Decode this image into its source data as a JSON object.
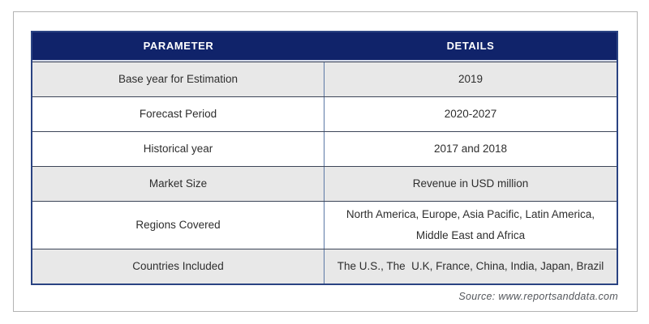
{
  "table": {
    "headers": [
      "PARAMETER",
      "DETAILS"
    ],
    "rows": [
      {
        "parameter": "Base year for Estimation",
        "details": "2019"
      },
      {
        "parameter": "Forecast Period",
        "details": "2020-2027"
      },
      {
        "parameter": "Historical year",
        "details": "2017 and 2018"
      },
      {
        "parameter": "Market Size",
        "details": "Revenue in USD million"
      },
      {
        "parameter": "Regions Covered",
        "details": "North America, Europe, Asia Pacific, Latin America,\nMiddle East and Africa"
      },
      {
        "parameter": "Countries Included",
        "details": "The U.S., The  U.K, France, China, India, Japan, Brazil"
      }
    ]
  },
  "source": {
    "text": "Source: www.reportsanddata.com"
  },
  "colors": {
    "header_bg": "#10236a",
    "header_text": "#ffffff",
    "header_underline": "#d6dcea",
    "row_shaded_bg": "#e8e8e8",
    "row_white_bg": "#ffffff",
    "table_border": "#2a4382",
    "row_divider": "#3c4558",
    "column_divider": "#5b78a5",
    "body_text": "#2e2e2e",
    "source_text": "#54575c",
    "frame_border": "#b3b3b3"
  }
}
